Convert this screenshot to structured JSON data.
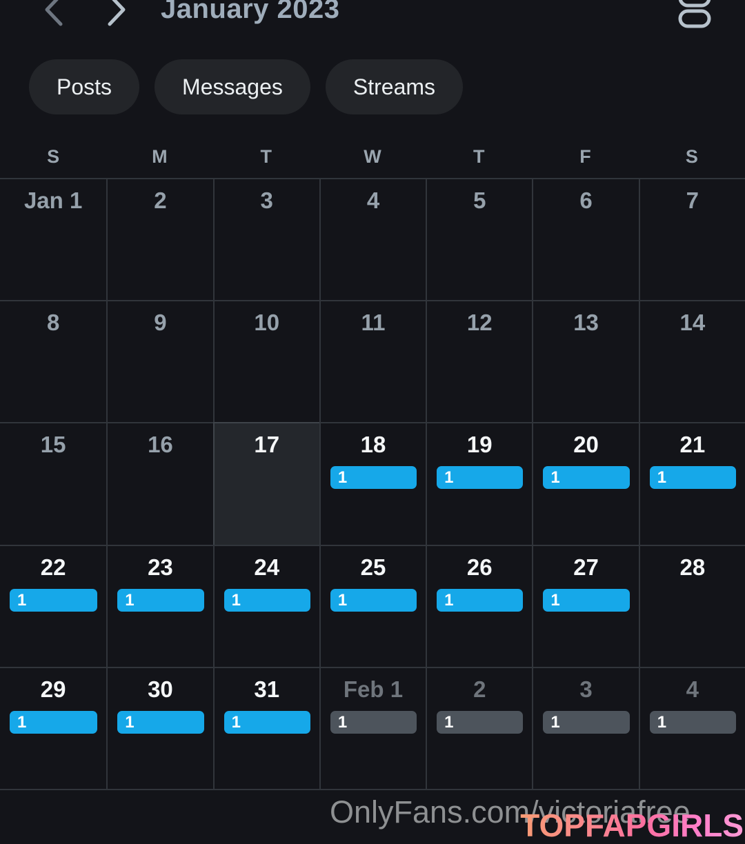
{
  "header": {
    "title": "January 2023",
    "icons": {
      "prev": "chevron-left-icon",
      "next": "chevron-right-icon",
      "view": "agenda-view-icon"
    }
  },
  "tabs": [
    {
      "label": "Posts"
    },
    {
      "label": "Messages"
    },
    {
      "label": "Streams"
    }
  ],
  "weekdays": [
    "S",
    "M",
    "T",
    "W",
    "T",
    "F",
    "S"
  ],
  "calendar": {
    "month": "January 2023",
    "today": "17",
    "cells": [
      {
        "label": "Jan 1",
        "state": "past",
        "badge": null
      },
      {
        "label": "2",
        "state": "past",
        "badge": null
      },
      {
        "label": "3",
        "state": "past",
        "badge": null
      },
      {
        "label": "4",
        "state": "past",
        "badge": null
      },
      {
        "label": "5",
        "state": "past",
        "badge": null
      },
      {
        "label": "6",
        "state": "past",
        "badge": null
      },
      {
        "label": "7",
        "state": "past",
        "badge": null
      },
      {
        "label": "8",
        "state": "past",
        "badge": null
      },
      {
        "label": "9",
        "state": "past",
        "badge": null
      },
      {
        "label": "10",
        "state": "past",
        "badge": null
      },
      {
        "label": "11",
        "state": "past",
        "badge": null
      },
      {
        "label": "12",
        "state": "past",
        "badge": null
      },
      {
        "label": "13",
        "state": "past",
        "badge": null
      },
      {
        "label": "14",
        "state": "past",
        "badge": null
      },
      {
        "label": "15",
        "state": "past",
        "badge": null
      },
      {
        "label": "16",
        "state": "past",
        "badge": null
      },
      {
        "label": "17",
        "state": "today",
        "badge": null
      },
      {
        "label": "18",
        "state": "future",
        "badge": {
          "count": "1",
          "style": "blue"
        }
      },
      {
        "label": "19",
        "state": "future",
        "badge": {
          "count": "1",
          "style": "blue"
        }
      },
      {
        "label": "20",
        "state": "future",
        "badge": {
          "count": "1",
          "style": "blue"
        }
      },
      {
        "label": "21",
        "state": "future",
        "badge": {
          "count": "1",
          "style": "blue"
        }
      },
      {
        "label": "22",
        "state": "future",
        "badge": {
          "count": "1",
          "style": "blue"
        }
      },
      {
        "label": "23",
        "state": "future",
        "badge": {
          "count": "1",
          "style": "blue"
        }
      },
      {
        "label": "24",
        "state": "future",
        "badge": {
          "count": "1",
          "style": "blue"
        }
      },
      {
        "label": "25",
        "state": "future",
        "badge": {
          "count": "1",
          "style": "blue"
        }
      },
      {
        "label": "26",
        "state": "future",
        "badge": {
          "count": "1",
          "style": "blue"
        }
      },
      {
        "label": "27",
        "state": "future",
        "badge": {
          "count": "1",
          "style": "blue"
        }
      },
      {
        "label": "28",
        "state": "future",
        "badge": null
      },
      {
        "label": "29",
        "state": "future",
        "badge": {
          "count": "1",
          "style": "blue"
        }
      },
      {
        "label": "30",
        "state": "future",
        "badge": {
          "count": "1",
          "style": "blue"
        }
      },
      {
        "label": "31",
        "state": "future",
        "badge": {
          "count": "1",
          "style": "blue"
        }
      },
      {
        "label": "Feb 1",
        "state": "other",
        "badge": {
          "count": "1",
          "style": "gray"
        }
      },
      {
        "label": "2",
        "state": "other",
        "badge": {
          "count": "1",
          "style": "gray"
        }
      },
      {
        "label": "3",
        "state": "other",
        "badge": {
          "count": "1",
          "style": "gray"
        }
      },
      {
        "label": "4",
        "state": "other",
        "badge": {
          "count": "1",
          "style": "gray"
        }
      }
    ]
  },
  "footer": {
    "watermark": "OnlyFans.com/victoriafree",
    "brand": "TOPFAPGIRLS"
  },
  "colors": {
    "background": "#131419",
    "scheduled_badge_blue": "#16a8e9",
    "other_month_badge_gray": "#4d545c",
    "today_highlight": "#24272c",
    "brand_gradient_start": "#f89b74",
    "brand_gradient_end": "#ff9bd6"
  }
}
